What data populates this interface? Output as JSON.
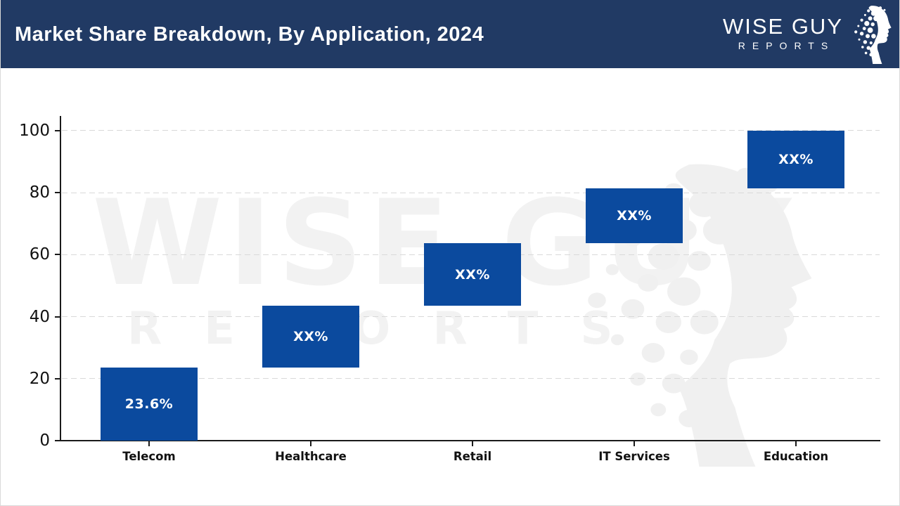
{
  "header": {
    "title": "Market Share Breakdown, By Application, 2024",
    "background_color": "#213a64",
    "logo": {
      "line1": "WISE GUY",
      "line2": "REPORTS"
    }
  },
  "watermark": {
    "line1": "WISE GUY",
    "line2": "REPORTS"
  },
  "chart_data": {
    "type": "bar",
    "subtype": "waterfall",
    "title": "Market Share Breakdown, By Application, 2024",
    "unit": "%",
    "categories": [
      "Telecom",
      "Healthcare",
      "Retail",
      "IT Services",
      "Education"
    ],
    "segments": [
      {
        "category": "Telecom",
        "start": 0,
        "end": 23.6,
        "label": "23.6%"
      },
      {
        "category": "Healthcare",
        "start": 23.6,
        "end": 43.6,
        "label": "XX%"
      },
      {
        "category": "Retail",
        "start": 43.6,
        "end": 63.6,
        "label": "XX%"
      },
      {
        "category": "IT Services",
        "start": 63.6,
        "end": 81.4,
        "label": "XX%"
      },
      {
        "category": "Education",
        "start": 81.4,
        "end": 100,
        "label": "XX%"
      }
    ],
    "yticks": [
      0,
      20,
      40,
      60,
      80,
      100
    ],
    "ylim": [
      0,
      105
    ],
    "xlabel": "",
    "ylabel": "",
    "grid": "horizontal-dashed",
    "legend": "none",
    "bar_color": "#0b4a9e",
    "bar_label_color": "#ffffff"
  }
}
